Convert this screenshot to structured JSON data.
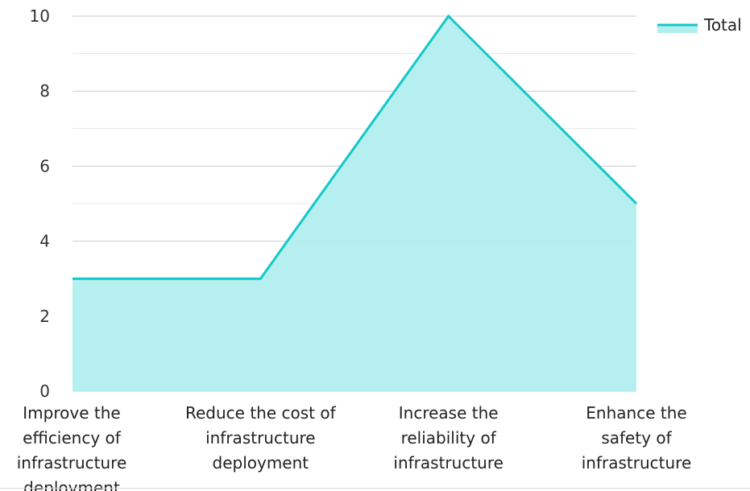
{
  "chart_data": {
    "type": "area",
    "categories": [
      [
        "Improve the",
        "efficiency of",
        "infrastructure",
        "deployment"
      ],
      [
        "Reduce the cost of",
        "infrastructure",
        "deployment"
      ],
      [
        "Increase the",
        "reliability of",
        "infrastructure"
      ],
      [
        "Enhance the",
        "safety of",
        "infrastructure"
      ]
    ],
    "series": [
      {
        "name": "Total",
        "values": [
          3,
          3,
          10,
          5
        ]
      }
    ],
    "ylim": [
      0,
      10
    ],
    "yticks": [
      "0",
      "2",
      "4",
      "6",
      "8",
      "10"
    ],
    "grid": true,
    "legend": "top-right",
    "colors": {
      "line": "#14c8c8",
      "fill": "#b1eeee",
      "grid_major": "#cccccc",
      "grid_minor": "#e6e6e6"
    }
  }
}
